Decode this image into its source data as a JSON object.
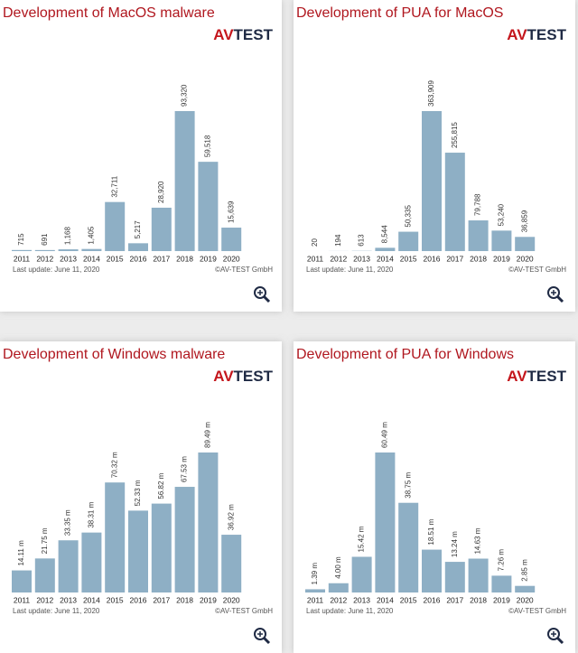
{
  "chart_data": [
    {
      "type": "bar",
      "title": "Development of MacOS malware",
      "logo_a": "AV",
      "logo_b": "TEST",
      "categories": [
        "2011",
        "2012",
        "2013",
        "2014",
        "2015",
        "2016",
        "2017",
        "2018",
        "2019",
        "2020"
      ],
      "values": [
        715,
        691,
        1168,
        1405,
        32711,
        5217,
        28920,
        93320,
        59518,
        15639
      ],
      "value_labels": [
        "715",
        "691",
        "1,168",
        "1,405",
        "32,711",
        "5,217",
        "28,920",
        "93,320",
        "59,518",
        "15,639"
      ],
      "color": "#8eafc5",
      "footer": "Last update: June 11, 2020",
      "copyright": "©AV-TEST GmbH"
    },
    {
      "type": "bar",
      "title": "Development of PUA for MacOS",
      "logo_a": "AV",
      "logo_b": "TEST",
      "categories": [
        "2011",
        "2012",
        "2013",
        "2014",
        "2015",
        "2016",
        "2017",
        "2018",
        "2019",
        "2020"
      ],
      "values": [
        20,
        194,
        613,
        8544,
        50335,
        363909,
        255815,
        79788,
        53240,
        36859
      ],
      "value_labels": [
        "20",
        "194",
        "613",
        "8,544",
        "50,335",
        "363,909",
        "255,815",
        "79,788",
        "53,240",
        "36,859"
      ],
      "color": "#8eafc5",
      "footer": "Last update: June 11, 2020",
      "copyright": "©AV-TEST GmbH"
    },
    {
      "type": "bar",
      "title": "Development of Windows malware",
      "logo_a": "AV",
      "logo_b": "TEST",
      "categories": [
        "2011",
        "2012",
        "2013",
        "2014",
        "2015",
        "2016",
        "2017",
        "2018",
        "2019",
        "2020"
      ],
      "values": [
        14.11,
        21.75,
        33.35,
        38.31,
        70.32,
        52.33,
        56.82,
        67.53,
        89.49,
        36.92
      ],
      "value_labels": [
        "14.11 m",
        "21.75 m",
        "33.35 m",
        "38.31 m",
        "70.32 m",
        "52.33 m",
        "56.82 m",
        "67.53 m",
        "89.49 m",
        "36.92 m"
      ],
      "color": "#8eafc5",
      "footer": "Last update: June 11, 2020",
      "copyright": "©AV-TEST GmbH"
    },
    {
      "type": "bar",
      "title": "Development of PUA for Windows",
      "logo_a": "AV",
      "logo_b": "TEST",
      "categories": [
        "2011",
        "2012",
        "2013",
        "2014",
        "2015",
        "2016",
        "2017",
        "2018",
        "2019",
        "2020"
      ],
      "values": [
        1.39,
        4.0,
        15.42,
        60.49,
        38.75,
        18.51,
        13.24,
        14.63,
        7.26,
        2.85
      ],
      "value_labels": [
        "1.39 m",
        "4.00 m",
        "15.42 m",
        "60.49 m",
        "38.75 m",
        "18.51 m",
        "13.24 m",
        "14.63 m",
        "7.26 m",
        "2.85 m"
      ],
      "color": "#8eafc5",
      "footer": "Last update: June 11, 2020",
      "copyright": "©AV-TEST GmbH"
    }
  ]
}
